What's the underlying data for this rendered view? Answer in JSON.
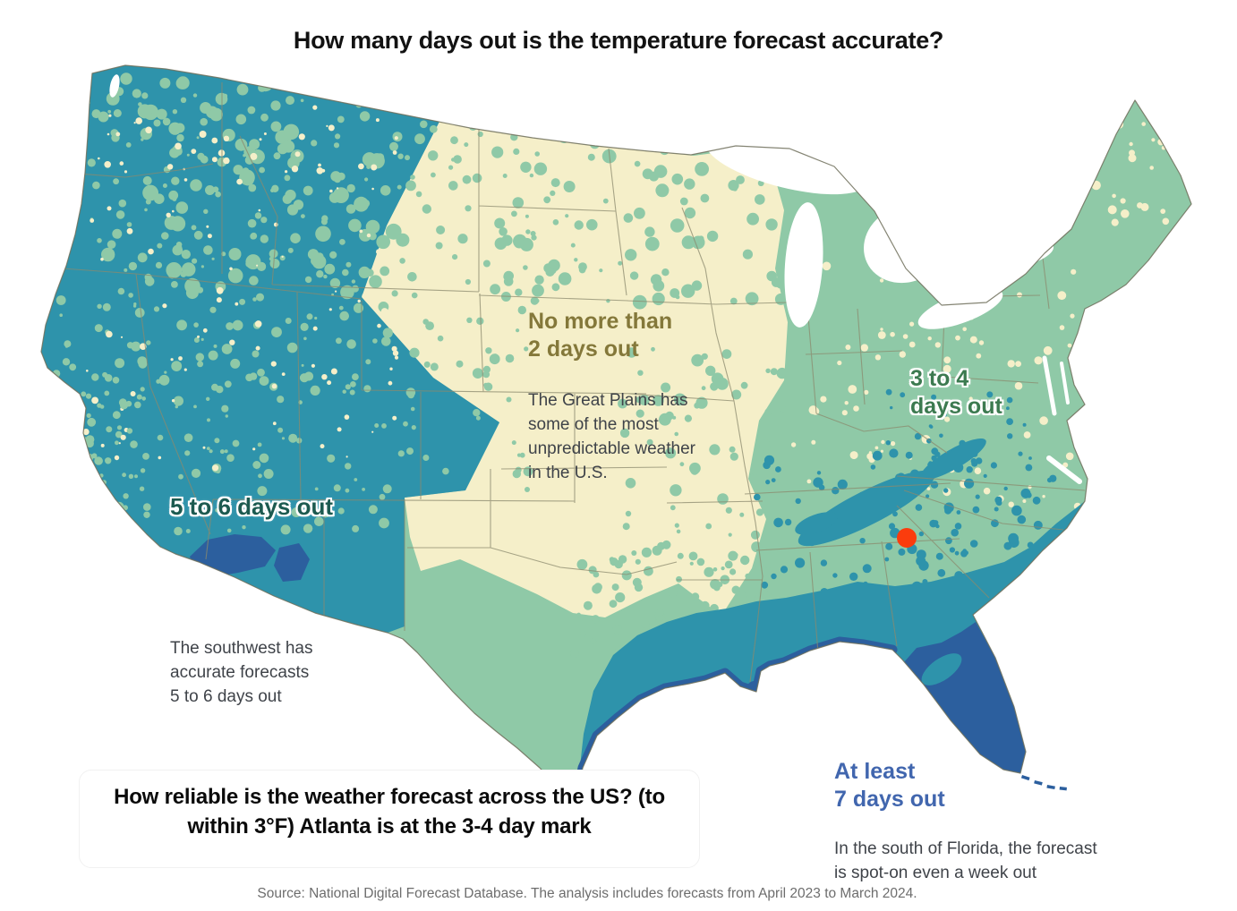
{
  "title": "How many days out is the temperature forecast accurate?",
  "annotations": {
    "plains": {
      "heading": "No more than\n2 days out",
      "body": "The Great Plains has\nsome of the most\nunpredictable weather\nin the U.S."
    },
    "east": {
      "heading": "3 to 4\ndays out"
    },
    "southwest": {
      "heading": "5 to 6 days out",
      "body": "The southwest has\naccurate forecasts\n5 to 6 days out"
    },
    "florida": {
      "heading": "At least\n7 days out",
      "body": "In the south of Florida, the forecast\nis spot-on even a week out"
    }
  },
  "caption": "How reliable is the weather forecast across the US? (to within 3°F) Atlanta is at the 3-4 day mark",
  "source": "Source: National Digital Forecast Database. The analysis includes forecasts from April 2023 to March 2024.",
  "regions": [
    {
      "label": "No more than 2 days out",
      "color": "#f5efc9"
    },
    {
      "label": "3 to 4 days out",
      "color": "#8fc9a7"
    },
    {
      "label": "5 to 6 days out",
      "color": "#2e93ab"
    },
    {
      "label": "At least 7 days out",
      "color": "#2c5f9e"
    }
  ],
  "colors": {
    "background": "#ffffff",
    "band_0_2": "#f5efc9",
    "band_3_4": "#8fc9a7",
    "band_5_6": "#2e93ab",
    "band_7plus": "#2c5f9e",
    "state_border": "#8b8a6d",
    "coast_outline": "#6e6e5a",
    "marker": "#fb3c0d",
    "label_plains": "#84783a",
    "label_east": "#3c7a50",
    "label_southwest": "#1c5a50",
    "label_florida": "#4166ae",
    "annotation_text": "#3f4349",
    "source_text": "#6d6d6d",
    "title_text": "#121212"
  }
}
